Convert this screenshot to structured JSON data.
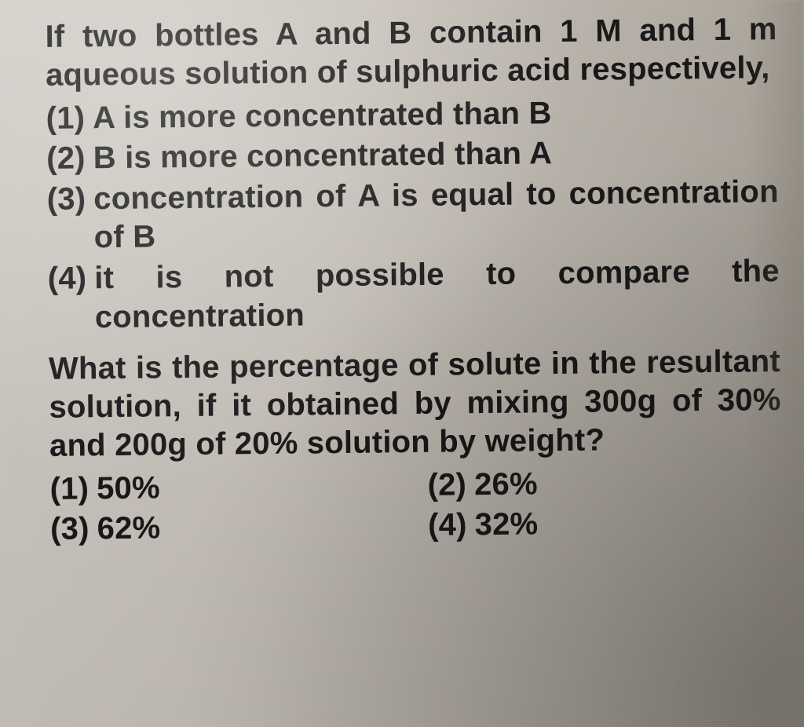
{
  "typography": {
    "font_family": "Arial, Helvetica, sans-serif",
    "stem_fontsize_pt": 30,
    "option_fontsize_pt": 30,
    "font_weight": 700,
    "text_color": "#1a1a1a",
    "line_height": 1.22
  },
  "background": {
    "gradient_stops": [
      "#d8d3cc",
      "#cfc9c1",
      "#b8b2a9",
      "#a39d93"
    ],
    "rotation_deg": -0.6
  },
  "q1": {
    "stem": "If two bottles A and B contain 1 M and 1 m aqueous solution of sulphuric acid respectively,",
    "options": {
      "1": {
        "num": "(1)",
        "text": "A is more concentrated than B"
      },
      "2": {
        "num": "(2)",
        "text": "B is more concentrated than A"
      },
      "3": {
        "num": "(3)",
        "text": "concentration of A is equal to concentration of B"
      },
      "4": {
        "num": "(4)",
        "text": "it is not possible to compare the concentration"
      }
    }
  },
  "q2": {
    "stem": "What is the percentage of solute in the resultant solution, if it obtained by mixing 300g of 30% and 200g of 20% solution by weight?",
    "options": {
      "1": {
        "num": "(1)",
        "text": "50%"
      },
      "2": {
        "num": "(2)",
        "text": "26%"
      },
      "3": {
        "num": "(3)",
        "text": "62%"
      },
      "4": {
        "num": "(4)",
        "text": "32%"
      }
    }
  }
}
